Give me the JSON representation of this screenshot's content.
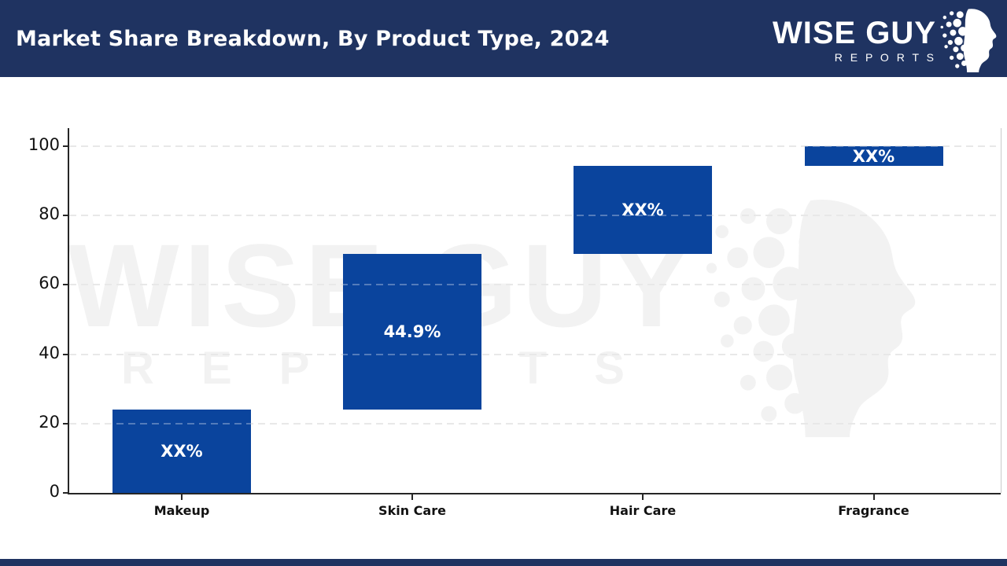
{
  "header": {
    "title": "Market Share Breakdown, By Product Type, 2024",
    "logo": {
      "line1": "WISE GUY",
      "line2": "R E P O R T S"
    }
  },
  "watermark": {
    "line1": "WISE GUY",
    "line2": "R E P O R T S"
  },
  "colors": {
    "header_bg": "#1f3361",
    "footer_bg": "#1f3361",
    "bar": "#0a449d",
    "grid": "#dedede",
    "axis": "#262626",
    "watermark": "#f2f2f2",
    "bar_label": "#ffffff"
  },
  "chart_data": {
    "type": "bar",
    "subtype": "waterfall",
    "title": "Market Share Breakdown, By Product Type, 2024",
    "categories": [
      "Makeup",
      "Skin Care",
      "Hair Care",
      "Fragrance"
    ],
    "segments": [
      {
        "category": "Makeup",
        "start": 0,
        "end": 24,
        "label": "XX%"
      },
      {
        "category": "Skin Care",
        "start": 24,
        "end": 68.9,
        "label": "44.9%"
      },
      {
        "category": "Hair Care",
        "start": 68.9,
        "end": 94.3,
        "label": "XX%"
      },
      {
        "category": "Fragrance",
        "start": 94.3,
        "end": 100,
        "label": "XX%"
      }
    ],
    "ylim": [
      0,
      100
    ],
    "yticks": [
      0,
      20,
      40,
      60,
      80,
      100
    ],
    "xlabel": "",
    "ylabel": "",
    "grid": "horizontal-dashed",
    "legend": null
  }
}
